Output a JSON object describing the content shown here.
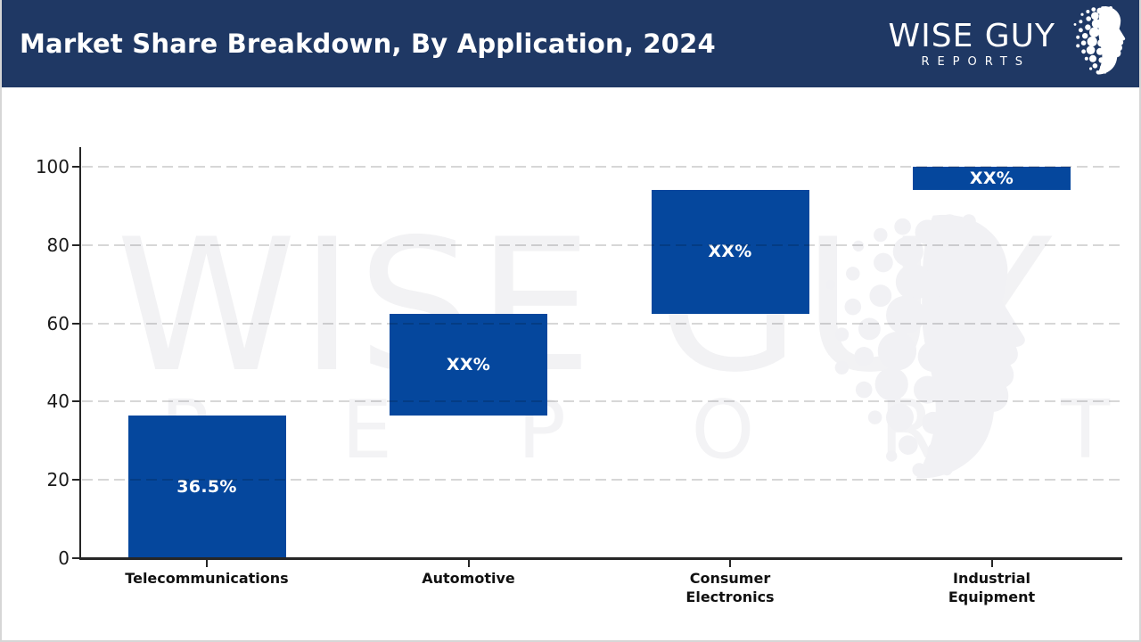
{
  "header": {
    "title": "Market Share Breakdown, By Application, 2024",
    "bg_color": "#1F3864",
    "logo": {
      "line1": "WISE GUY",
      "line2": "REPORTS"
    }
  },
  "watermark": {
    "line1": "WISE GUY",
    "line2": "R E P O R T S"
  },
  "chart_data": {
    "type": "bar",
    "subtype": "waterfall-floating-bars",
    "title": "Market Share Breakdown, By Application, 2024",
    "xlabel": "",
    "ylabel": "",
    "ylim": [
      0,
      100
    ],
    "y_ticks": [
      0,
      20,
      40,
      60,
      80,
      100
    ],
    "grid": "horizontal-dashed",
    "legend": "none",
    "bar_color": "#05479D",
    "bar_label_color": "#ffffff",
    "categories": [
      "Telecommunications",
      "Automotive",
      "Consumer\nElectronics",
      "Industrial\nEquipment"
    ],
    "segments": [
      {
        "category": "Telecommunications",
        "start": 0,
        "end": 36.5,
        "label": "36.5%"
      },
      {
        "category": "Automotive",
        "start": 36.5,
        "end": 62.5,
        "label": "XX%"
      },
      {
        "category": "Consumer Electronics",
        "start": 62.5,
        "end": 94,
        "label": "XX%"
      },
      {
        "category": "Industrial Equipment",
        "start": 94,
        "end": 100,
        "label": "XX%"
      }
    ]
  }
}
